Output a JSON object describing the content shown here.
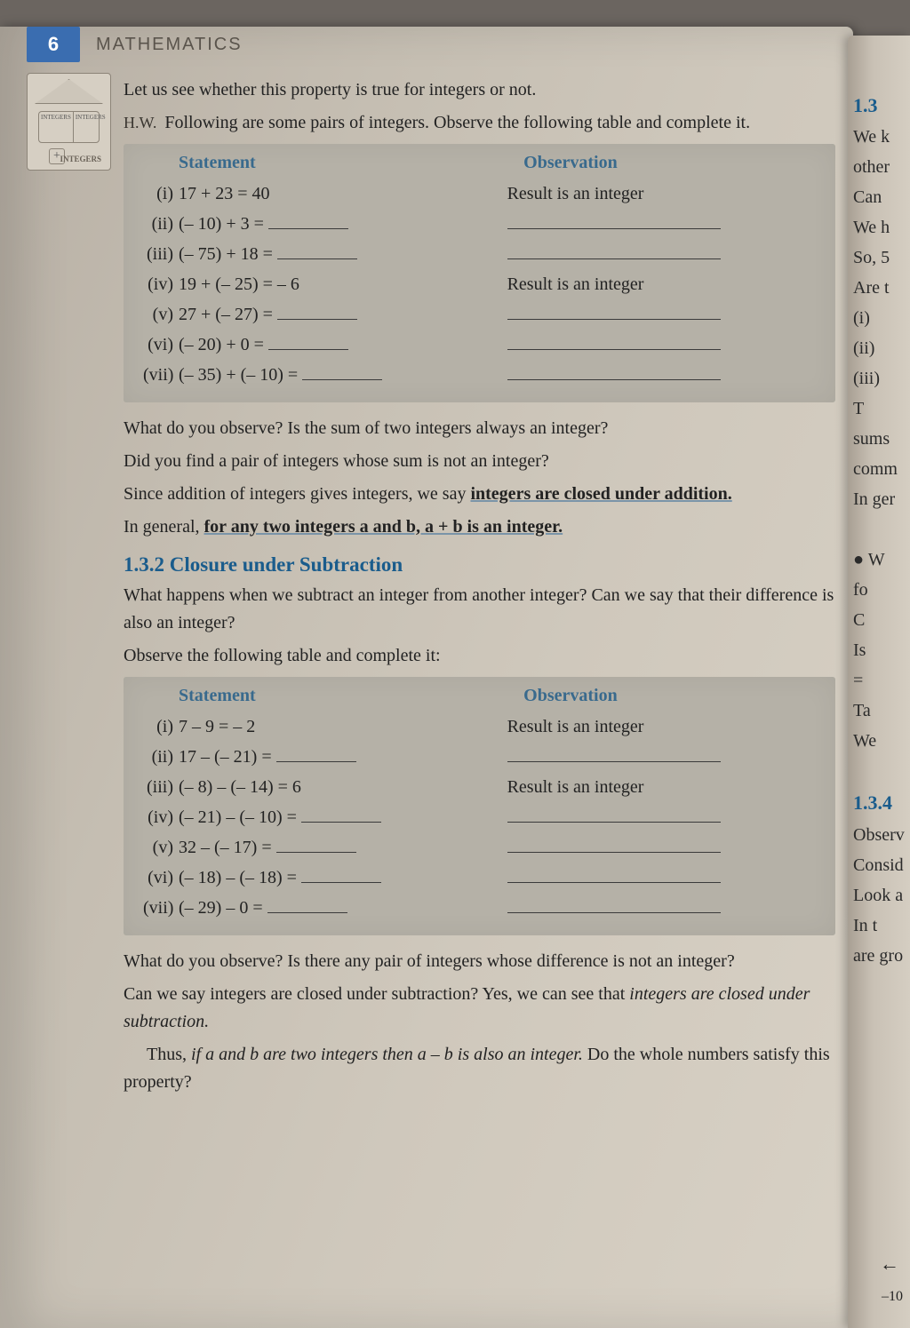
{
  "page_number": "6",
  "subject": "MATHEMATICS",
  "intro1": "Let us see whether this property is true for integers or not.",
  "hw_note": "H.W.",
  "intro2": "Following are some pairs of integers. Observe the following table and complete it.",
  "table1": {
    "head_left": "Statement",
    "head_right": "Observation",
    "rows": [
      {
        "rn": "(i)",
        "stmt": "17 + 23 = 40",
        "obs": "Result is an integer",
        "blank": false
      },
      {
        "rn": "(ii)",
        "stmt": "(– 10) + 3 =",
        "obs": "",
        "blank": true
      },
      {
        "rn": "(iii)",
        "stmt": "(– 75) + 18 =",
        "obs": "",
        "blank": true
      },
      {
        "rn": "(iv)",
        "stmt": "19 + (– 25) = – 6",
        "obs": "Result is an integer",
        "blank": false
      },
      {
        "rn": "(v)",
        "stmt": "27 + (– 27) =",
        "obs": "",
        "blank": true
      },
      {
        "rn": "(vi)",
        "stmt": "(– 20) + 0 =",
        "obs": "",
        "blank": true
      },
      {
        "rn": "(vii)",
        "stmt": "(– 35) + (– 10) =",
        "obs": "",
        "blank": true
      }
    ]
  },
  "q1": "What do you observe? Is the sum of two integers always an integer?",
  "q2": "Did you find a pair of integers whose sum is not an integer?",
  "p1a": "Since addition of integers gives integers, we say ",
  "p1b": "integers are closed under addition.",
  "p2a": "In general, ",
  "p2b": "for any two integers a and b, a + b is an integer.",
  "sec_head": "1.3.2  Closure under Subtraction",
  "p3": "What happens when we subtract an integer from another integer? Can we say that their difference is also an integer?",
  "p4": "Observe the following table and complete it:",
  "table2": {
    "head_left": "Statement",
    "head_right": "Observation",
    "rows": [
      {
        "rn": "(i)",
        "stmt": "7 – 9 = – 2",
        "obs": "Result is an integer",
        "blank": false
      },
      {
        "rn": "(ii)",
        "stmt": "17 – (– 21) =",
        "obs": "",
        "blank": true
      },
      {
        "rn": "(iii)",
        "stmt": "(– 8) – (– 14) = 6",
        "obs": "Result is an integer",
        "blank": false
      },
      {
        "rn": "(iv)",
        "stmt": "(– 21) – (– 10) =",
        "obs": "",
        "blank": true
      },
      {
        "rn": "(v)",
        "stmt": "32 – (– 17) =",
        "obs": "",
        "blank": true
      },
      {
        "rn": "(vi)",
        "stmt": "(– 18) – (– 18) =",
        "obs": "",
        "blank": true
      },
      {
        "rn": "(vii)",
        "stmt": "(– 29) – 0 =",
        "obs": "",
        "blank": true
      }
    ]
  },
  "q3": "What do you observe? Is there any pair of integers whose difference is not an integer?",
  "p5a": "Can we say integers are closed under subtraction? Yes, we can see that ",
  "p5b": "integers are closed under subtraction.",
  "p6a": "Thus, ",
  "p6b": "if a and b are two integers then a – b is also an integer.",
  "p6c": " Do the whole numbers satisfy this property?",
  "illustration": {
    "bag_left": "INTEGERS",
    "bag_right": "INTEGERS",
    "bottom_label": "INTEGERS"
  },
  "next_page": {
    "sec": "1.3",
    "lines": [
      "We k",
      "other",
      "Can",
      "We h",
      "So, 5",
      "Are t",
      "(i)",
      "(ii)",
      "(iii)",
      "T",
      "sums",
      "comm",
      "In ger",
      "",
      "●  W",
      "fo",
      "C",
      "Is",
      "=",
      "Ta",
      "We",
      "",
      "1.3.4",
      "Observ",
      "Consid",
      "Look a",
      "In t",
      "are gro"
    ],
    "num_tick": "–10"
  }
}
